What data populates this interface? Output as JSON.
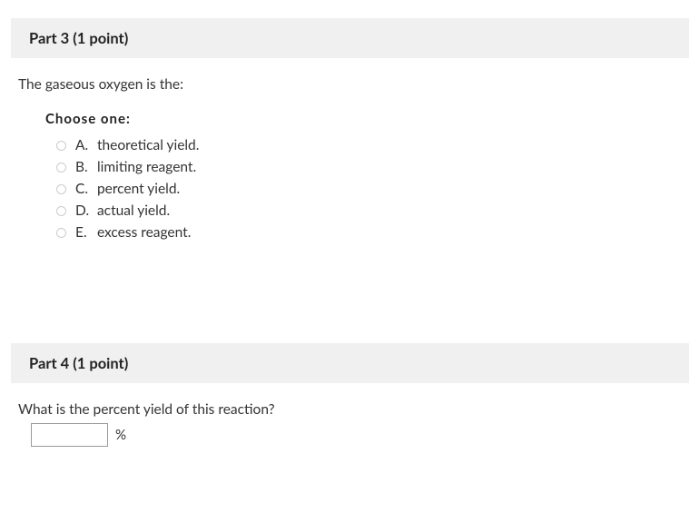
{
  "part3": {
    "header": "Part 3   (1 point)",
    "question": "The gaseous oxygen is the:",
    "choose_label": "Choose one:",
    "options": [
      {
        "letter": "A.",
        "text": "theoretical yield."
      },
      {
        "letter": "B.",
        "text": "limiting reagent."
      },
      {
        "letter": "C.",
        "text": "percent yield."
      },
      {
        "letter": "D.",
        "text": "actual yield."
      },
      {
        "letter": "E.",
        "text": "excess reagent."
      }
    ]
  },
  "part4": {
    "header": "Part 4   (1 point)",
    "question": "What is the percent yield of this reaction?",
    "input_value": "",
    "unit": "%"
  },
  "colors": {
    "header_bg": "#f0f0f0",
    "text": "#333333",
    "heading": "#222222",
    "radio_border": "#cccccc",
    "input_border": "#999999",
    "background": "#ffffff"
  },
  "typography": {
    "header_fontsize": 16.5,
    "body_fontsize": 15.5,
    "choose_fontsize": 15,
    "header_weight": 700
  }
}
